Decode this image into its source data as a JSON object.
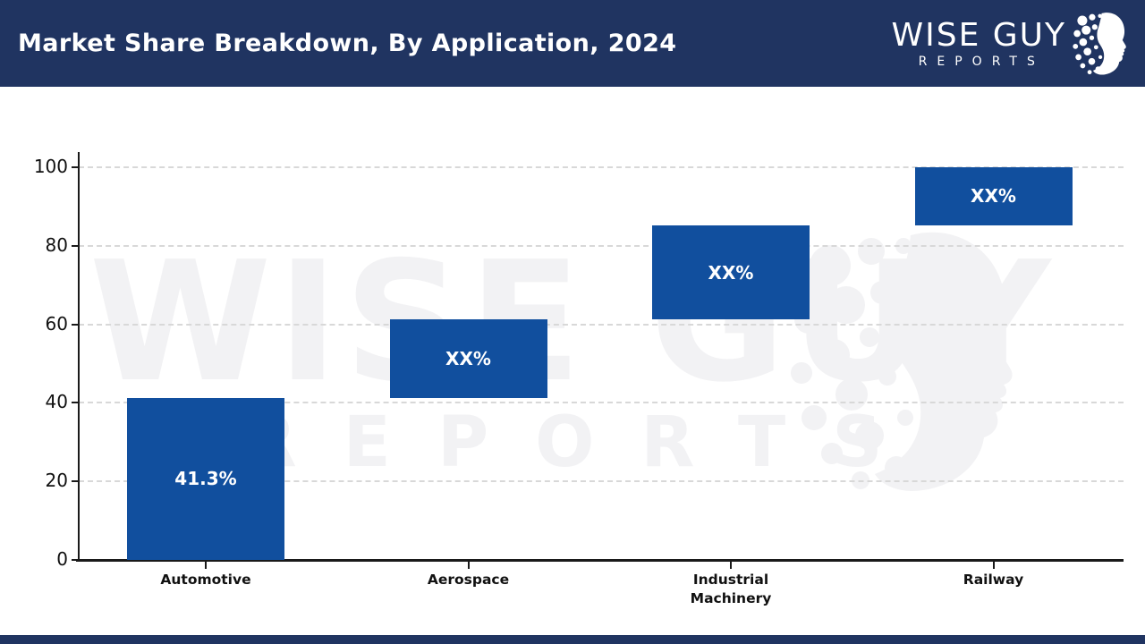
{
  "header": {
    "title": "Market Share Breakdown, By Application, 2024",
    "bg_color": "#203461"
  },
  "logo": {
    "line1": "WISE GUY",
    "line2": "REPORTS"
  },
  "watermark": {
    "line1": "WISE GUY",
    "line2": "REPORTS"
  },
  "chart_data": {
    "type": "bar",
    "variant": "waterfall",
    "title": "Market Share Breakdown, By Application, 2024",
    "categories": [
      "Automotive",
      "Aerospace",
      "Industrial Machinery",
      "Railway"
    ],
    "segments": [
      {
        "category": "Automotive",
        "start": 0,
        "end": 41.3,
        "label": "41.3%"
      },
      {
        "category": "Aerospace",
        "start": 41.3,
        "end": 61.2,
        "label": "XX%"
      },
      {
        "category": "Industrial Machinery",
        "start": 61.2,
        "end": 85.2,
        "label": "XX%"
      },
      {
        "category": "Railway",
        "start": 85.2,
        "end": 100,
        "label": "XX%"
      }
    ],
    "bar_color": "#114f9e",
    "bar_label_color": "#ffffff",
    "ylim": [
      0,
      100
    ],
    "yticks": [
      0,
      20,
      40,
      60,
      80,
      100
    ],
    "grid": {
      "horizontal": true,
      "style": "dashed",
      "color": "#d8d8d8"
    },
    "legend": "none",
    "xlabel": "",
    "ylabel": ""
  }
}
